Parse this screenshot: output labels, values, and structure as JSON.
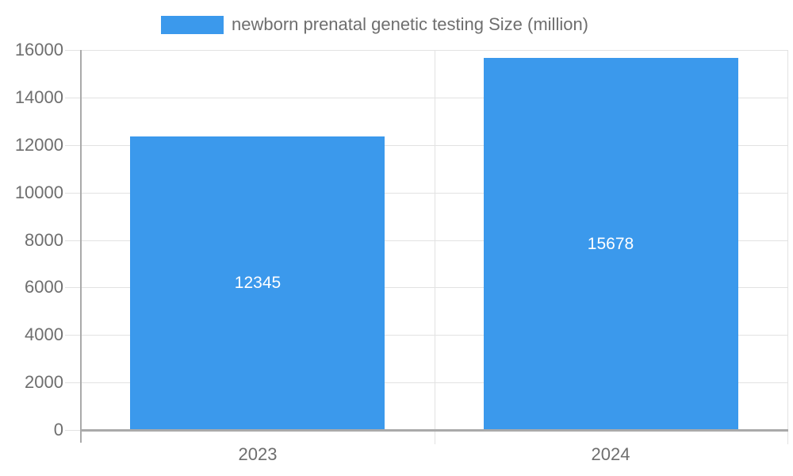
{
  "chart_data": {
    "type": "bar",
    "title": "",
    "legend": "newborn prenatal genetic testing Size (million)",
    "legend_position": "top",
    "categories": [
      "2023",
      "2024"
    ],
    "series": [
      {
        "name": "newborn prenatal genetic testing Size (million)",
        "values": [
          12345,
          15678
        ]
      }
    ],
    "bar_value_labels": [
      "12345",
      "15678"
    ],
    "xlabel": "",
    "ylabel": "",
    "ylim": [
      0,
      16000
    ],
    "yticks": [
      0,
      2000,
      4000,
      6000,
      8000,
      10000,
      12000,
      14000,
      16000
    ],
    "ytick_labels": [
      "0",
      "2000",
      "4000",
      "6000",
      "8000",
      "10000",
      "12000",
      "14000",
      "16000"
    ],
    "grid": true,
    "colors": {
      "bar": "#3b99ec",
      "bar_value_text": "#ffffff",
      "tick_text": "#6e6e6e",
      "legend_text": "#6e6e6e",
      "gridline": "#e2e2e2",
      "axis_line": "#aaaaaa",
      "background": "#ffffff"
    }
  }
}
